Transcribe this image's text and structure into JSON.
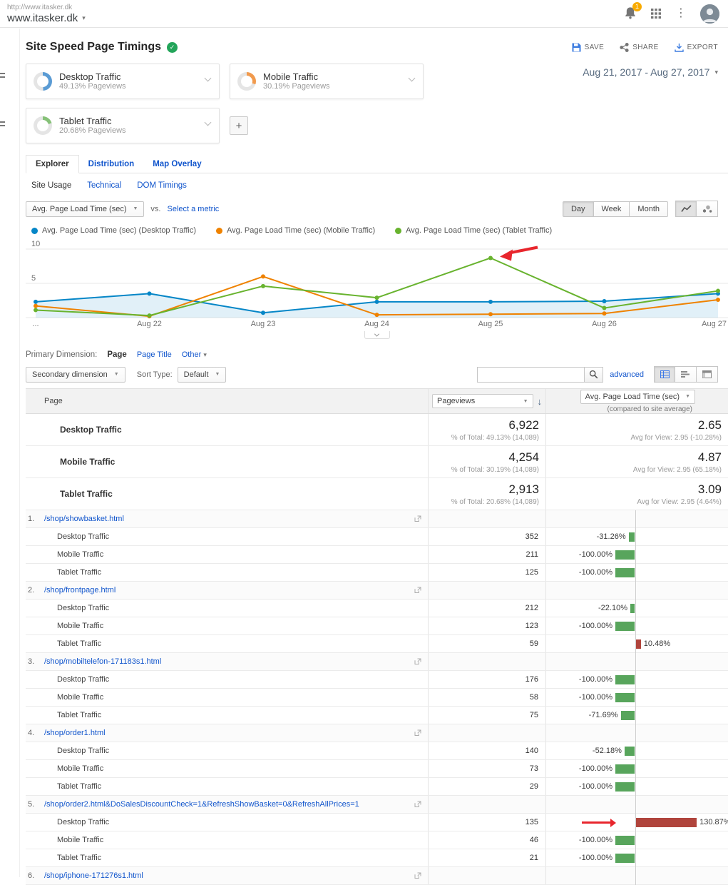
{
  "colors": {
    "link": "#1155cc",
    "bar_negative": "#58a55c",
    "bar_positive": "#b0443c",
    "annotation_red": "#e8262d",
    "notification_badge": "#f9ab00",
    "verified_green": "#23a55a"
  },
  "topbar": {
    "url": "http://www.itasker.dk",
    "account": "www.itasker.dk",
    "notification_count": "1"
  },
  "header": {
    "title": "Site Speed Page Timings",
    "save": "SAVE",
    "share": "SHARE",
    "export": "EXPORT"
  },
  "segments": [
    {
      "name": "Desktop Traffic",
      "detail": "49.13% Pageviews",
      "pct": 49.13,
      "color": "#5a9bd4"
    },
    {
      "name": "Mobile Traffic",
      "detail": "30.19% Pageviews",
      "pct": 30.19,
      "color": "#f19a4d"
    },
    {
      "name": "Tablet Traffic",
      "detail": "20.68% Pageviews",
      "pct": 20.68,
      "color": "#86c178"
    }
  ],
  "add_segment_label": "+",
  "date_range": "Aug 21, 2017 - Aug 27, 2017",
  "tabs": {
    "active": "Explorer",
    "links": [
      "Distribution",
      "Map Overlay"
    ]
  },
  "subtabs": {
    "active": "Site Usage",
    "links": [
      "Technical",
      "DOM Timings"
    ]
  },
  "metric_bar": {
    "metric": "Avg. Page Load Time (sec)",
    "vs": "vs.",
    "select_metric": "Select a metric",
    "granularity": [
      "Day",
      "Week",
      "Month"
    ],
    "active": "Day"
  },
  "chart_data": {
    "type": "line",
    "x": [
      "...",
      "Aug 22",
      "Aug 23",
      "Aug 24",
      "Aug 25",
      "Aug 26",
      "Aug 27"
    ],
    "ylim": [
      0,
      10
    ],
    "yticks": [
      5,
      10
    ],
    "grid": "horizontal",
    "legend_position": "top",
    "series": [
      {
        "name": "Avg. Page Load Time (sec) (Desktop Traffic)",
        "color": "#0586c7",
        "area": true,
        "values": [
          2.3,
          3.5,
          0.7,
          2.3,
          2.3,
          2.4,
          3.5
        ]
      },
      {
        "name": "Avg. Page Load Time (sec) (Mobile Traffic)",
        "color": "#ef8200",
        "area": false,
        "values": [
          1.7,
          0.2,
          6.0,
          0.4,
          0.5,
          0.6,
          2.6
        ]
      },
      {
        "name": "Avg. Page Load Time (sec) (Tablet Traffic)",
        "color": "#68b32e",
        "area": false,
        "values": [
          1.1,
          0.3,
          4.6,
          2.9,
          8.7,
          1.4,
          3.9
        ]
      }
    ],
    "annotation": {
      "type": "arrow",
      "color": "#e8262d",
      "target_series": "Tablet Traffic",
      "target_x": "Aug 25"
    }
  },
  "primary_dimension": {
    "label": "Primary Dimension:",
    "active": "Page",
    "links": [
      "Page Title",
      "Other"
    ]
  },
  "toolbar": {
    "secondary_dimension": "Secondary dimension",
    "sort_type_label": "Sort Type:",
    "sort_type_value": "Default",
    "search_placeholder": "",
    "advanced": "advanced"
  },
  "table": {
    "columns": {
      "page": "Page",
      "pageviews": "Pageviews",
      "metric": "Avg. Page Load Time (sec)",
      "metric_sub": "(compared to site average)"
    },
    "summary": [
      {
        "label": "Desktop Traffic",
        "pageviews": "6,922",
        "pageviews_sub": "% of Total: 49.13% (14,089)",
        "metric": "2.65",
        "metric_sub": "Avg for View: 2.95 (-10.28%)"
      },
      {
        "label": "Mobile Traffic",
        "pageviews": "4,254",
        "pageviews_sub": "% of Total: 30.19% (14,089)",
        "metric": "4.87",
        "metric_sub": "Avg for View: 2.95 (65.18%)"
      },
      {
        "label": "Tablet Traffic",
        "pageviews": "2,913",
        "pageviews_sub": "% of Total: 20.68% (14,089)",
        "metric": "3.09",
        "metric_sub": "Avg for View: 2.95 (4.64%)"
      }
    ],
    "groups": [
      {
        "n": "1.",
        "url": "/shop/showbasket.html",
        "rows": [
          {
            "label": "Desktop Traffic",
            "pv": "352",
            "pct": "-31.26%"
          },
          {
            "label": "Mobile Traffic",
            "pv": "211",
            "pct": "-100.00%"
          },
          {
            "label": "Tablet Traffic",
            "pv": "125",
            "pct": "-100.00%"
          }
        ]
      },
      {
        "n": "2.",
        "url": "/shop/frontpage.html",
        "rows": [
          {
            "label": "Desktop Traffic",
            "pv": "212",
            "pct": "-22.10%"
          },
          {
            "label": "Mobile Traffic",
            "pv": "123",
            "pct": "-100.00%"
          },
          {
            "label": "Tablet Traffic",
            "pv": "59",
            "pct": "10.48%"
          }
        ]
      },
      {
        "n": "3.",
        "url": "/shop/mobiltelefon-171183s1.html",
        "rows": [
          {
            "label": "Desktop Traffic",
            "pv": "176",
            "pct": "-100.00%"
          },
          {
            "label": "Mobile Traffic",
            "pv": "58",
            "pct": "-100.00%"
          },
          {
            "label": "Tablet Traffic",
            "pv": "75",
            "pct": "-71.69%"
          }
        ]
      },
      {
        "n": "4.",
        "url": "/shop/order1.html",
        "rows": [
          {
            "label": "Desktop Traffic",
            "pv": "140",
            "pct": "-52.18%"
          },
          {
            "label": "Mobile Traffic",
            "pv": "73",
            "pct": "-100.00%"
          },
          {
            "label": "Tablet Traffic",
            "pv": "29",
            "pct": "-100.00%"
          }
        ]
      },
      {
        "n": "5.",
        "url": "/shop/order2.html&DoSalesDiscountCheck=1&RefreshShowBasket=0&RefreshAllPrices=1",
        "rows": [
          {
            "label": "Desktop Traffic",
            "pv": "135",
            "pct": "130.87%",
            "arrow": true
          },
          {
            "label": "Mobile Traffic",
            "pv": "46",
            "pct": "-100.00%"
          },
          {
            "label": "Tablet Traffic",
            "pv": "21",
            "pct": "-100.00%"
          }
        ]
      },
      {
        "n": "6.",
        "url": "/shop/iphone-171276s1.html",
        "rows": []
      }
    ]
  }
}
